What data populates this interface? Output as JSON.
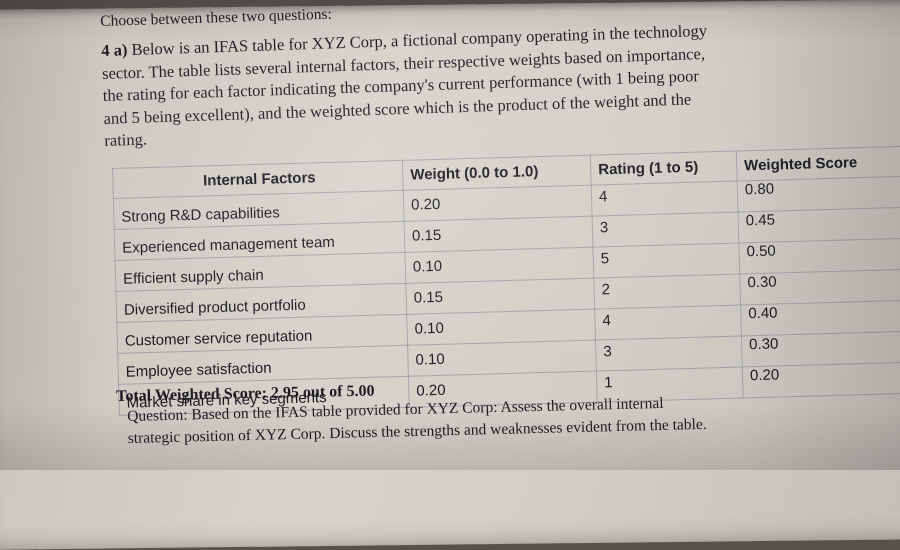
{
  "intro": "Choose between these two questions:",
  "question_label": "4 a)",
  "question_lines": [
    "Below is an IFAS table for XYZ Corp, a fictional company operating in the technology",
    "sector. The table lists several internal factors, their respective weights based on importance,",
    "the rating for each factor indicating the company's current performance (with 1 being poor",
    "and 5 being excellent), and the weighted score which is the product of the weight and the",
    "rating."
  ],
  "table": {
    "headers": [
      "Internal Factors",
      "Weight (0.0 to 1.0)",
      "Rating (1 to 5)",
      "Weighted Score"
    ],
    "rows": [
      {
        "factor": "Strong R&D capabilities",
        "weight": "0.20",
        "rating": "4",
        "score": "0.80"
      },
      {
        "factor": "Experienced management team",
        "weight": "0.15",
        "rating": "3",
        "score": "0.45"
      },
      {
        "factor": "Efficient supply chain",
        "weight": "0.10",
        "rating": "5",
        "score": "0.50"
      },
      {
        "factor": "Diversified product portfolio",
        "weight": "0.15",
        "rating": "2",
        "score": "0.30"
      },
      {
        "factor": "Customer service reputation",
        "weight": "0.10",
        "rating": "4",
        "score": "0.40"
      },
      {
        "factor": "Employee satisfaction",
        "weight": "0.10",
        "rating": "3",
        "score": "0.30"
      },
      {
        "factor": "Market share in key segments",
        "weight": "0.20",
        "rating": "1",
        "score": "0.20"
      }
    ]
  },
  "total_line": "Total Weighted Score: 2.95 out of 5.00",
  "followup_lines": [
    "Question: Based on the IFAS table provided for XYZ Corp: Assess the overall internal",
    "strategic position of XYZ Corp. Discuss the strengths and weaknesses evident from the table."
  ]
}
